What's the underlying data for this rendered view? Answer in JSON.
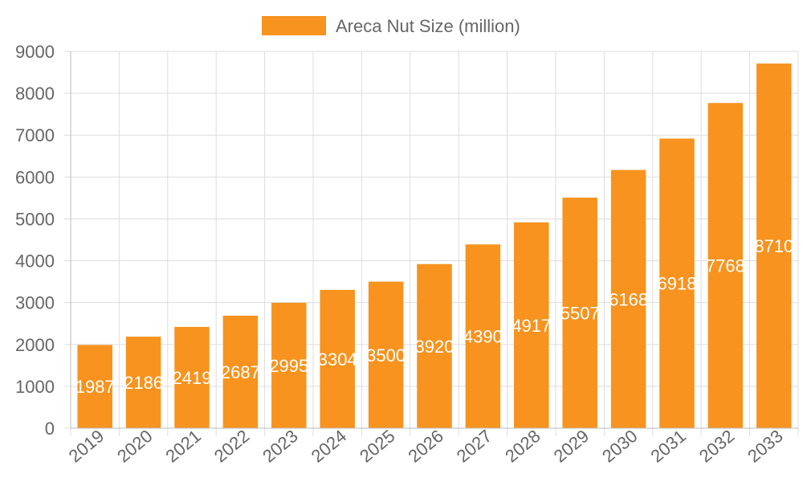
{
  "chart_data": {
    "type": "bar",
    "categories": [
      "2019",
      "2020",
      "2021",
      "2022",
      "2023",
      "2024",
      "2025",
      "2026",
      "2027",
      "2028",
      "2029",
      "2030",
      "2031",
      "2032",
      "2033"
    ],
    "series": [
      {
        "name": "Areca Nut Size (million)",
        "values": [
          1987,
          2186,
          2419,
          2687,
          2995,
          3304,
          3500,
          3920,
          4390,
          4917,
          5507,
          6168,
          6918,
          7768,
          8710
        ],
        "color": "#f7931e"
      }
    ],
    "yticks": [
      0,
      1000,
      2000,
      3000,
      4000,
      5000,
      6000,
      7000,
      8000,
      9000
    ],
    "ylim": [
      0,
      9000
    ],
    "legend_position": "top",
    "grid": true,
    "data_labels": true
  }
}
